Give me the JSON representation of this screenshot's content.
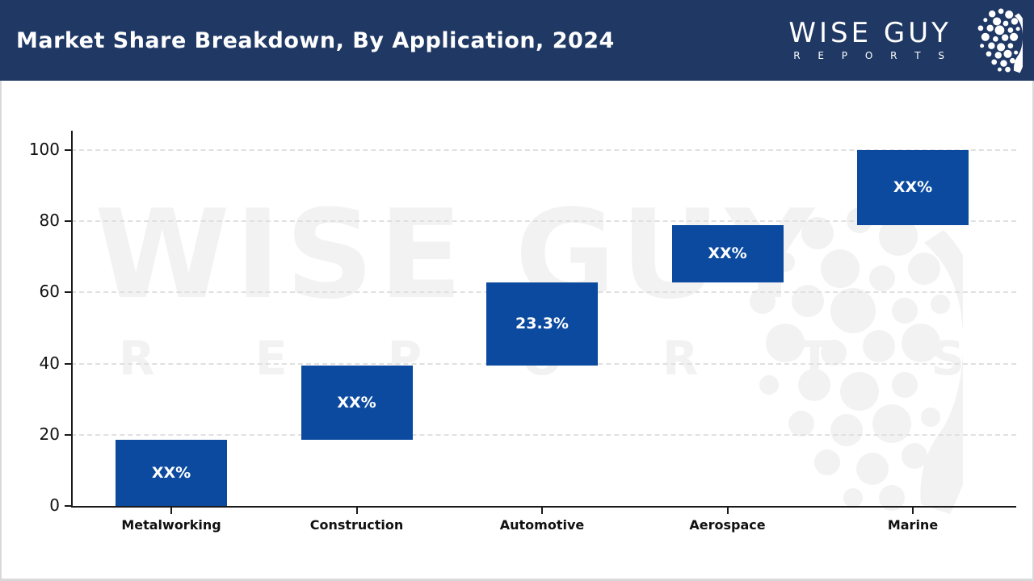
{
  "header": {
    "title": "Market Share Breakdown, By Application, 2024"
  },
  "logo": {
    "line1": "WISE GUY",
    "line2": "R E P O R T S"
  },
  "watermark": {
    "line1": "WISE GUY",
    "line2": "R E P O R T S"
  },
  "colors": {
    "header_bg": "#1f3864",
    "bar": "#0b4a9e",
    "bar_label": "#ffffff",
    "grid": "#e0e0e0",
    "axis": "#1a1a1a",
    "watermark": "#f2f2f2",
    "panel_border": "#d9d9d9"
  },
  "chart_data": {
    "type": "bar",
    "subtype": "floating-waterfall",
    "title": "Market Share Breakdown, By Application, 2024",
    "categories": [
      "Metalworking",
      "Construction",
      "Automotive",
      "Aerospace",
      "Marine"
    ],
    "series": [
      {
        "name": "Market Share",
        "segments": [
          {
            "category": "Metalworking",
            "start": 0,
            "end": 18.5,
            "label": "XX%"
          },
          {
            "category": "Construction",
            "start": 18.5,
            "end": 39.5,
            "label": "XX%"
          },
          {
            "category": "Automotive",
            "start": 39.5,
            "end": 62.8,
            "label": "23.3%"
          },
          {
            "category": "Aerospace",
            "start": 62.8,
            "end": 79.0,
            "label": "XX%"
          },
          {
            "category": "Marine",
            "start": 79.0,
            "end": 100.0,
            "label": "XX%"
          }
        ]
      }
    ],
    "xlabel": "",
    "ylabel": "",
    "yticks": [
      0,
      20,
      40,
      60,
      80,
      100
    ],
    "ylim": [
      0,
      107
    ],
    "grid": {
      "horizontal": true,
      "style": "dashed"
    },
    "legend": "none"
  }
}
